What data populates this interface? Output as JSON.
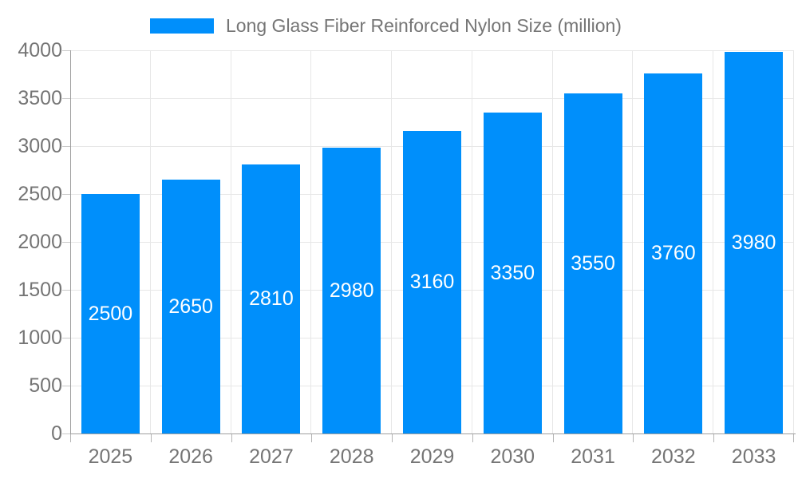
{
  "legend": {
    "label": "Long Glass Fiber Reinforced Nylon Size (million)"
  },
  "chart_data": {
    "type": "bar",
    "title": "",
    "xlabel": "",
    "ylabel": "",
    "categories": [
      "2025",
      "2026",
      "2027",
      "2028",
      "2029",
      "2030",
      "2031",
      "2032",
      "2033"
    ],
    "series": [
      {
        "name": "Long Glass Fiber Reinforced Nylon Size (million)",
        "values": [
          2500,
          2650,
          2810,
          2980,
          3160,
          3350,
          3550,
          3760,
          3980
        ]
      }
    ],
    "value_labels_shown": true,
    "ylim": [
      0,
      4000
    ],
    "yticks": [
      0,
      500,
      1000,
      1500,
      2000,
      2500,
      3000,
      3500,
      4000
    ],
    "grid": true,
    "legend_position": "top",
    "colors": {
      "bar": "#008FFB",
      "value_label": "#FFFFFF",
      "axis_label": "#757575",
      "legend_label": "#757575",
      "gridline": "#E7E7E7",
      "axis_line": "#9E9E9E",
      "background": "#FFFFFF"
    }
  }
}
